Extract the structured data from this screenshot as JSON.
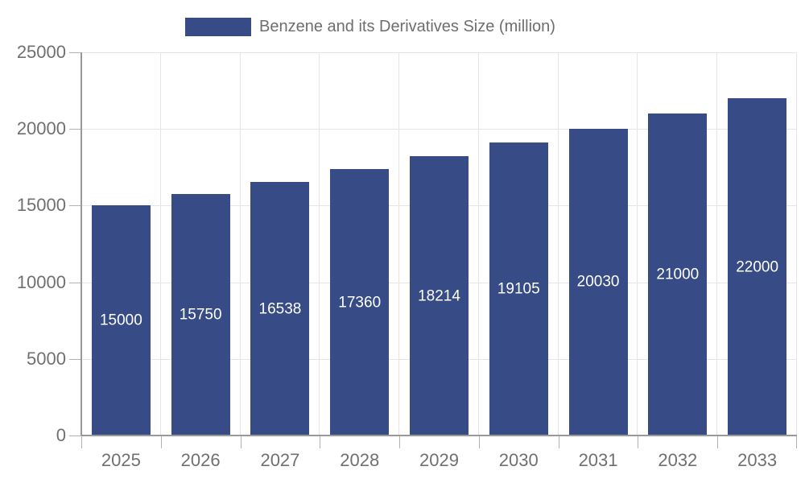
{
  "chart_data": {
    "type": "bar",
    "title": "Benzene and its Derivatives Size (million)",
    "categories": [
      "2025",
      "2026",
      "2027",
      "2028",
      "2029",
      "2030",
      "2031",
      "2032",
      "2033"
    ],
    "values": [
      15000,
      15750,
      16538,
      17360,
      18214,
      19105,
      20030,
      21000,
      22000
    ],
    "xlabel": "",
    "ylabel": "",
    "ylim": [
      0,
      25000
    ],
    "yticks": [
      0,
      5000,
      10000,
      15000,
      20000,
      25000
    ],
    "grid": true,
    "legend_position": "top",
    "value_labels": "inside-center"
  },
  "legend": {
    "label": "Benzene and its Derivatives Size (million)"
  },
  "colors": {
    "bar": "#374B87",
    "value_label": "#FFFFFF",
    "grid": "#E4E4E9",
    "axis": "#999999",
    "tick": "#B3B3B3",
    "axis_text": "#707070",
    "legend_text": "#6E6E6E",
    "background": "#FFFFFF"
  }
}
